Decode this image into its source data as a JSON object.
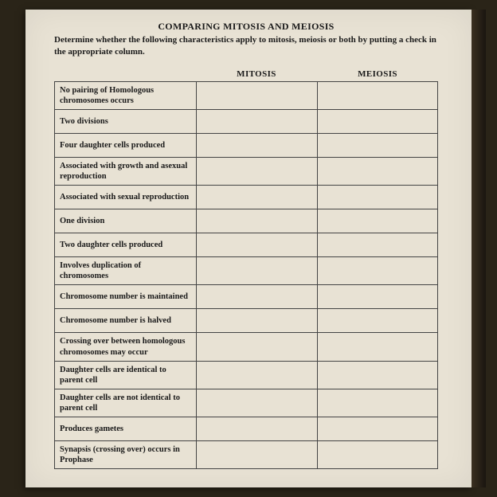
{
  "title": "COMPARING MITOSIS AND MEIOSIS",
  "instructions": "Determine whether the following characteristics apply to mitosis, meiosis or both by putting a check in the appropriate column.",
  "columns": {
    "col1": "MITOSIS",
    "col2": "MEIOSIS"
  },
  "rows": [
    {
      "label": "No pairing of Homologous chromosomes occurs"
    },
    {
      "label": "Two divisions"
    },
    {
      "label": "Four daughter cells produced"
    },
    {
      "label": "Associated with growth and asexual reproduction"
    },
    {
      "label": "Associated with sexual reproduction"
    },
    {
      "label": "One division"
    },
    {
      "label": "Two daughter cells produced"
    },
    {
      "label": "Involves duplication of chromosomes"
    },
    {
      "label": "Chromosome number is maintained"
    },
    {
      "label": "Chromosome number is halved"
    },
    {
      "label": "Crossing over between homologous chromosomes may occur"
    },
    {
      "label": "Daughter cells are identical to parent cell"
    },
    {
      "label": "Daughter cells are not identical to parent cell"
    },
    {
      "label": "Produces gametes"
    },
    {
      "label": "Synapsis (crossing over) occurs in Prophase"
    }
  ],
  "colors": {
    "paper_bg": "#e8e2d4",
    "surround_bg": "#2a2418",
    "border": "#444444",
    "text": "#1a1a1a"
  }
}
